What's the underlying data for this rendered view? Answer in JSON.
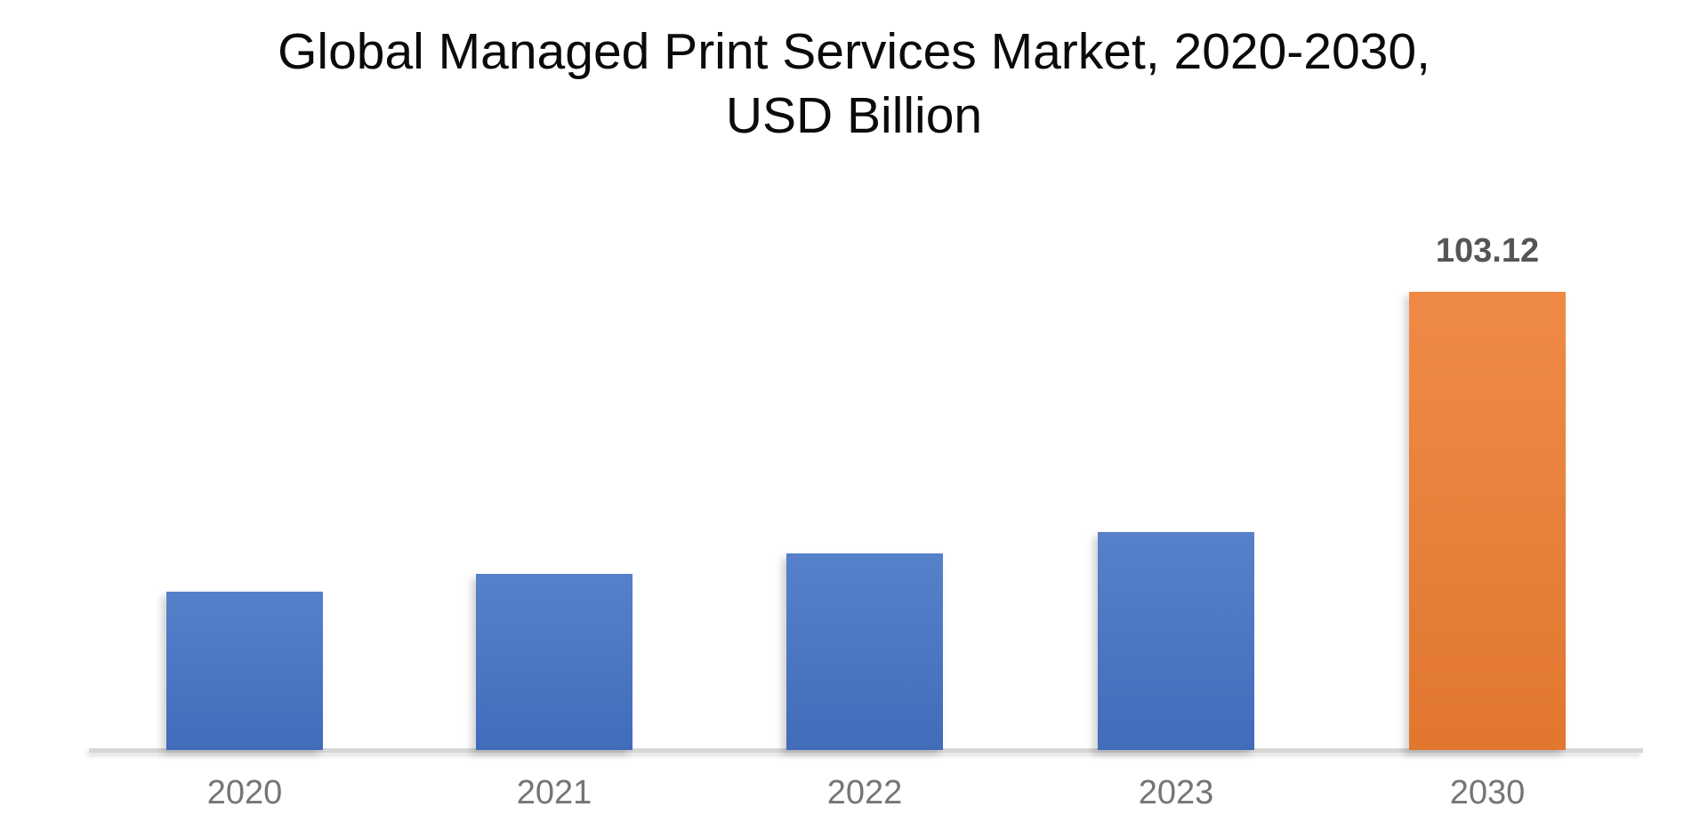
{
  "chart_data": {
    "type": "bar",
    "title": "Global Managed Print Services Market, 2020-2030, USD Billion",
    "categories": [
      "2020",
      "2021",
      "2022",
      "2023",
      "2030"
    ],
    "values": [
      35.6,
      39.7,
      44.3,
      49.1,
      103.12
    ],
    "data_labels": [
      "",
      "",
      "",
      "",
      "103.12"
    ],
    "bar_colors": [
      "#4472C4",
      "#4472C4",
      "#4472C4",
      "#4472C4",
      "#ED7D31"
    ],
    "title_color": "#0b0b0b",
    "value_label_color": "#555555",
    "category_label_color": "#757575",
    "axis_line_color": "#D7D7D7",
    "xlabel": "",
    "ylabel": "",
    "ylim": [
      0,
      110
    ],
    "grid": false,
    "legend": "none"
  }
}
